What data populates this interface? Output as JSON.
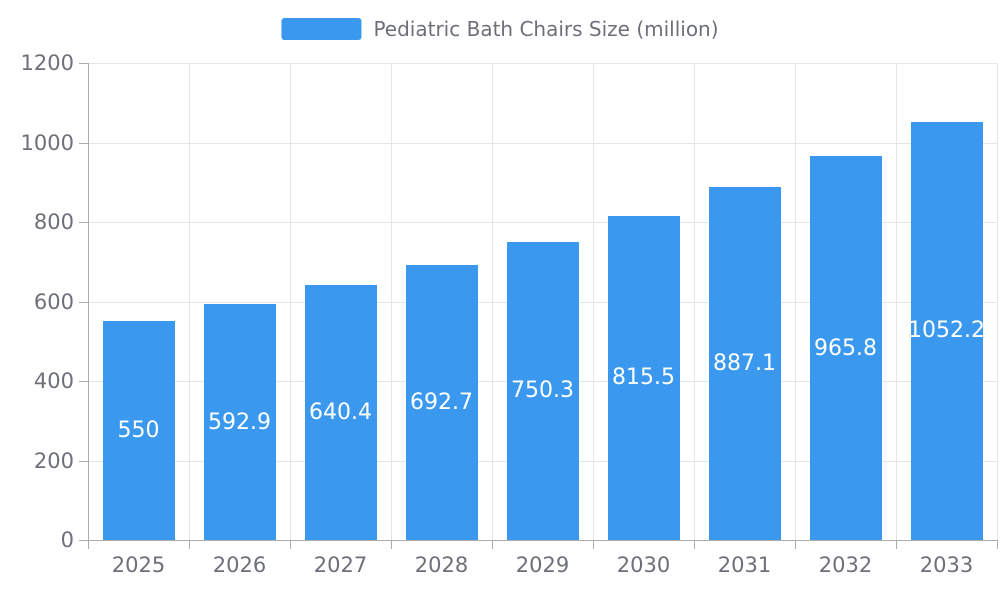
{
  "legend": {
    "label": "Pediatric Bath Chairs Size (million)"
  },
  "chart_data": {
    "type": "bar",
    "title": "Pediatric Bath Chairs Size (million)",
    "categories": [
      "2025",
      "2026",
      "2027",
      "2028",
      "2029",
      "2030",
      "2031",
      "2032",
      "2033"
    ],
    "values": [
      550,
      592.9,
      640.4,
      692.7,
      750.3,
      815.5,
      887.1,
      965.8,
      1052.2
    ],
    "value_labels": [
      "550",
      "592.9",
      "640.4",
      "692.7",
      "750.3",
      "815.5",
      "887.1",
      "965.8",
      "1052.2"
    ],
    "xlabel": "",
    "ylabel": "",
    "ylim": [
      0,
      1200
    ],
    "y_ticks": [
      0,
      200,
      400,
      600,
      800,
      1000,
      1200
    ],
    "grid": true,
    "legend_position": "top-center",
    "colors": {
      "bar": "#3A99EE",
      "bar_label": "#FFFFFF",
      "axis_text": "#6E7079",
      "grid_line": "#E5E6EB",
      "axis_line": "#ACACAC"
    }
  }
}
